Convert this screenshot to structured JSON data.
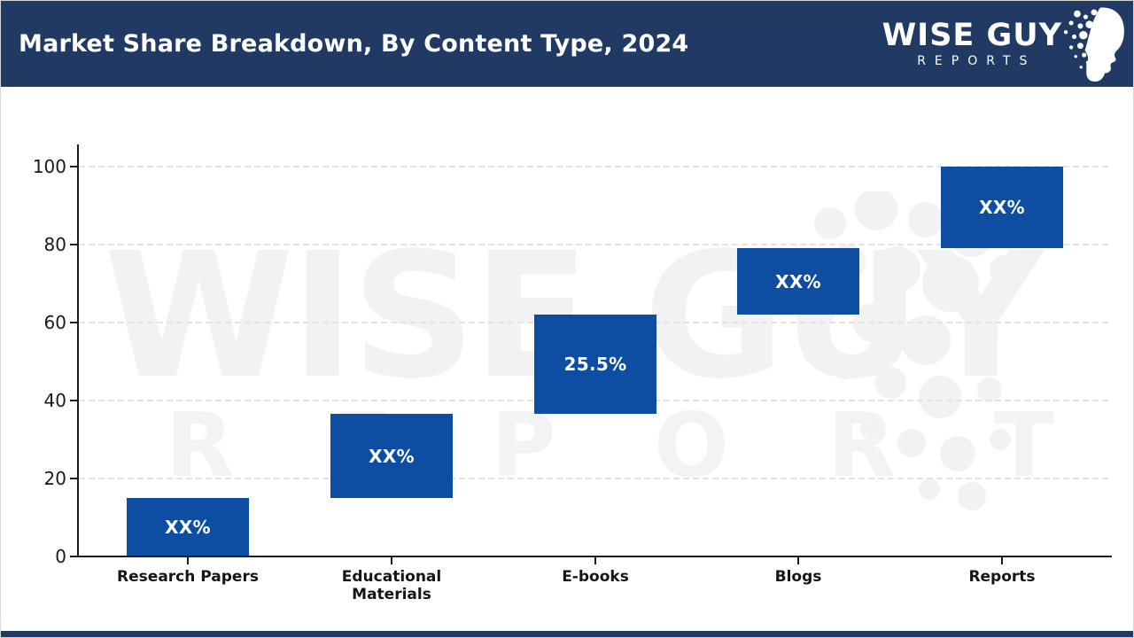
{
  "header": {
    "title": "Market Share Breakdown, By Content Type, 2024",
    "logo": {
      "line1": "WISE GUY",
      "line2": "REPORTS"
    }
  },
  "watermark": {
    "line1": "WISE GUY",
    "line2": "REPORTS"
  },
  "chart_data": {
    "type": "bar",
    "subtype": "floating-waterfall",
    "title": "Market Share Breakdown, By Content Type, 2024",
    "categories": [
      "Research Papers",
      "Educational Materials",
      "E-books",
      "Blogs",
      "Reports"
    ],
    "segments": [
      {
        "category": "Research Papers",
        "start": 0,
        "end": 15,
        "label": "XX%"
      },
      {
        "category": "Educational Materials",
        "start": 15,
        "end": 36.5,
        "label": "XX%"
      },
      {
        "category": "E-books",
        "start": 36.5,
        "end": 62,
        "label": "25.5%"
      },
      {
        "category": "Blogs",
        "start": 62,
        "end": 79,
        "label": "XX%"
      },
      {
        "category": "Reports",
        "start": 79,
        "end": 100,
        "label": "XX%"
      }
    ],
    "xlabel": "",
    "ylabel": "",
    "ylim": [
      0,
      100
    ],
    "yticks": [
      0,
      20,
      40,
      60,
      80,
      100
    ],
    "grid": "horizontal-dashed",
    "legend": false
  },
  "colors": {
    "header_bg": "#213a63",
    "footer_bg": "#213a63",
    "bar": "#0d4da2",
    "bar_label": "#ffffff",
    "axis": "#1c1c1c",
    "gridline": "#e4e4e6",
    "watermark": "#f2f2f4"
  }
}
